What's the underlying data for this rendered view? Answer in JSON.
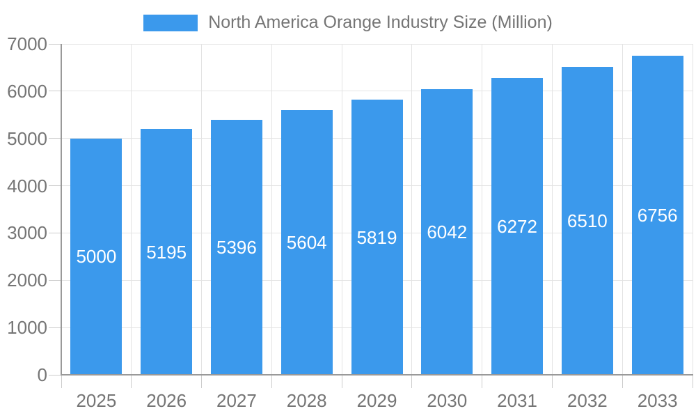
{
  "chart_data": {
    "type": "bar",
    "title": "North America Orange Industry Size (Million)",
    "categories": [
      "2025",
      "2026",
      "2027",
      "2028",
      "2029",
      "2030",
      "2031",
      "2032",
      "2033"
    ],
    "series": [
      {
        "name": "North America Orange Industry Size (Million)",
        "values": [
          5000,
          5195,
          5396,
          5604,
          5819,
          6042,
          6272,
          6510,
          6756
        ]
      }
    ],
    "xlabel": "",
    "ylabel": "",
    "ylim": [
      0,
      7000
    ],
    "yticks": [
      0,
      1000,
      2000,
      3000,
      4000,
      5000,
      6000,
      7000
    ],
    "grid": true,
    "legend_position": "top",
    "value_label_position": "inside-middle",
    "colors": {
      "bar": "#3B99EC",
      "text": "#757575",
      "value_label": "#FFFFFF",
      "axis": "#999999",
      "tick": "#CCCCCC",
      "gridline": "#E3E3E3",
      "background": "#FFFFFF"
    }
  }
}
